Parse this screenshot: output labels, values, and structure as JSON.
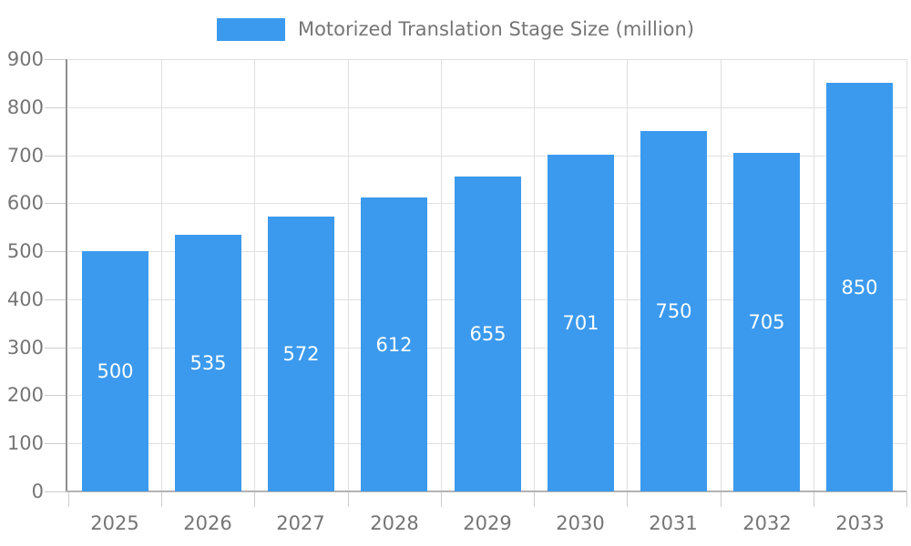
{
  "chart_data": {
    "type": "bar",
    "title": "",
    "xlabel": "",
    "ylabel": "",
    "legend_position": "top",
    "grid": true,
    "value_labels": "inside-center",
    "categories": [
      "2025",
      "2026",
      "2027",
      "2028",
      "2029",
      "2030",
      "2031",
      "2032",
      "2033"
    ],
    "series": [
      {
        "name": "Motorized Translation Stage Size (million)",
        "values": [
          500,
          535,
          572,
          612,
          655,
          701,
          750,
          705,
          850
        ]
      }
    ],
    "ylim": [
      0,
      900
    ],
    "ytick_step": 100,
    "yticks": [
      0,
      100,
      200,
      300,
      400,
      500,
      600,
      700,
      800,
      900
    ],
    "colors": {
      "bar": "#3B9AEE",
      "axis_text": "#757575",
      "legend_text": "#757575",
      "value_label_text": "#FFFFFF",
      "gridline": "#E0E0E0",
      "tick": "#CCCCCC",
      "x_axis_line": "#B3B3B3",
      "y_axis_line": "#8F8F8F",
      "background": "#FFFFFF"
    }
  }
}
